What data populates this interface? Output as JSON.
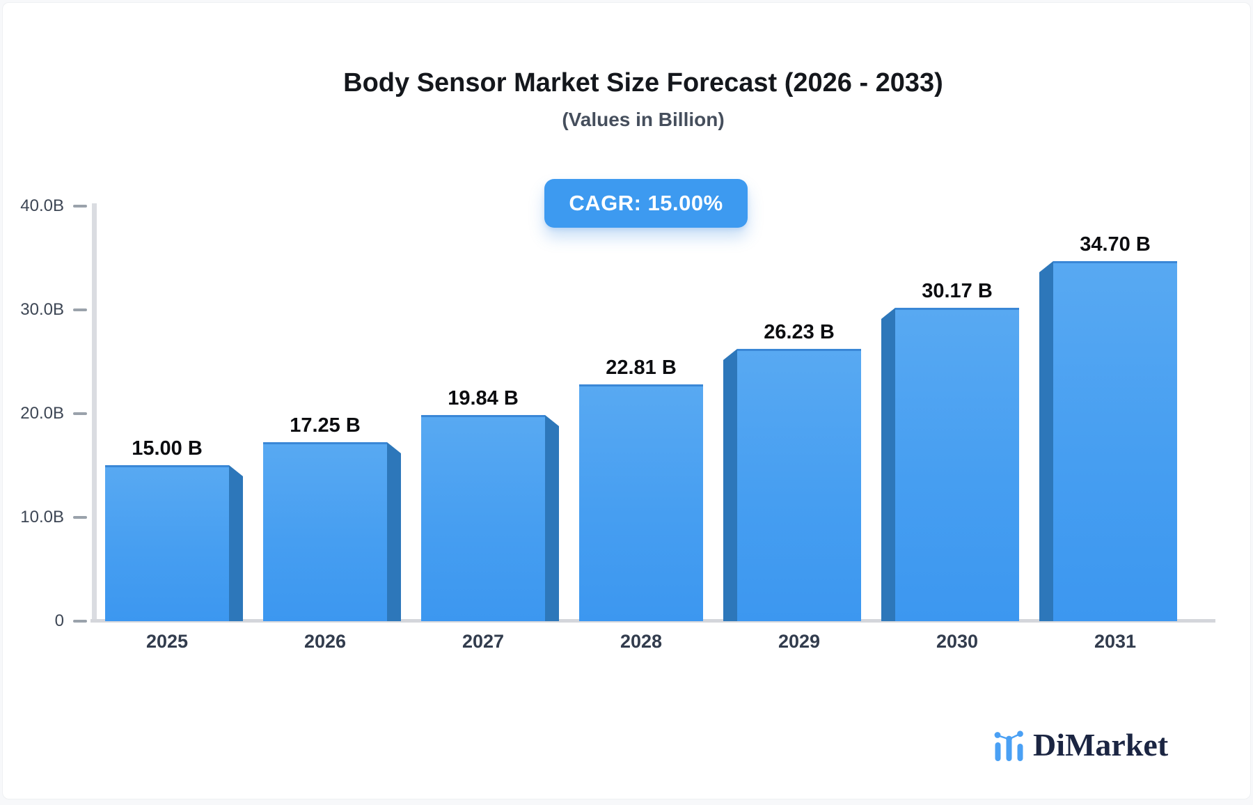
{
  "header": {
    "title": "Body Sensor Market Size Forecast (2026 - 2033)",
    "subtitle": "(Values in Billion)",
    "cagr_label": "CAGR: 15.00%"
  },
  "chart_data": {
    "type": "bar",
    "title": "Body Sensor Market Size Forecast (2026 - 2033)",
    "subtitle": "(Values in Billion)",
    "cagr": "CAGR: 15.00%",
    "categories": [
      "2025",
      "2026",
      "2027",
      "2028",
      "2029",
      "2030",
      "2031"
    ],
    "values": [
      15.0,
      17.25,
      19.84,
      22.81,
      26.23,
      30.17,
      34.7
    ],
    "value_labels": [
      "15.00 B",
      "17.25 B",
      "19.84 B",
      "22.81 B",
      "26.23 B",
      "30.17 B",
      "34.70 B"
    ],
    "xlabel": "",
    "ylabel": "",
    "ylim": [
      0,
      40
    ],
    "yticks": [
      {
        "label": "0",
        "value": 0
      },
      {
        "label": "10.0B",
        "value": 10
      },
      {
        "label": "20.0B",
        "value": 20
      },
      {
        "label": "30.0B",
        "value": 30
      },
      {
        "label": "40.0B",
        "value": 40
      }
    ],
    "grid": false,
    "legend": false,
    "bar_color_top": "#58a9f2",
    "bar_color_bottom": "#3c97f0",
    "bar_side_color": "#2d77ba",
    "axis_color": "#d4d6db"
  },
  "logo": {
    "text": "DiMarket",
    "icon": "mini-bar-chart-icon",
    "text_color": "#1b2542",
    "accent_color": "#4aa0f4"
  }
}
